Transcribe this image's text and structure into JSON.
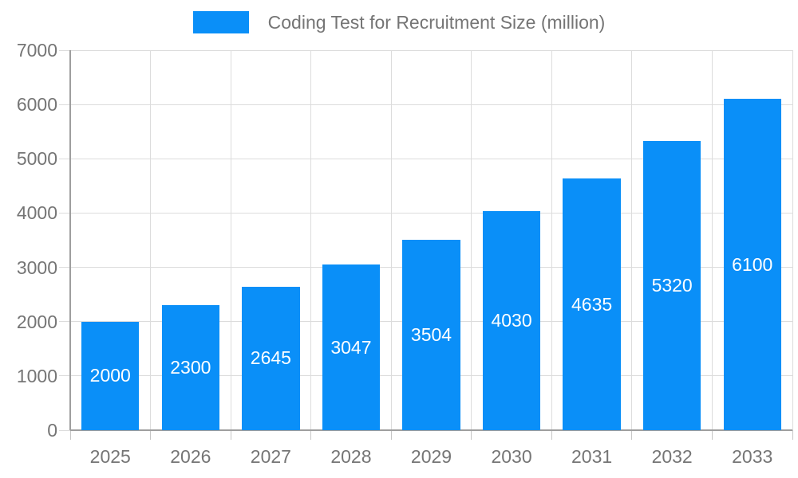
{
  "chart_data": {
    "type": "bar",
    "legend_label": "Coding Test for Recruitment Size (million)",
    "categories": [
      "2025",
      "2026",
      "2027",
      "2028",
      "2029",
      "2030",
      "2031",
      "2032",
      "2033"
    ],
    "values": [
      2000,
      2300,
      2645,
      3047,
      3504,
      4030,
      4635,
      5320,
      6100
    ],
    "xlabel": "",
    "ylabel": "",
    "ylim": [
      0,
      7000
    ],
    "y_ticks": [
      "0",
      "1000",
      "2000",
      "3000",
      "4000",
      "5000",
      "6000",
      "7000"
    ],
    "grid": "on",
    "legend_position": "top-center",
    "bar_label_position": "inside-center",
    "colors": {
      "bar": "#0a8ff8",
      "bar_label": "#ffffff",
      "axis_text": "#757575",
      "legend_text": "#757575",
      "gridline": "#dcdcdc",
      "axis_line": "#9e9e9e",
      "tick": "#c6c6c6",
      "background": "#ffffff"
    }
  }
}
